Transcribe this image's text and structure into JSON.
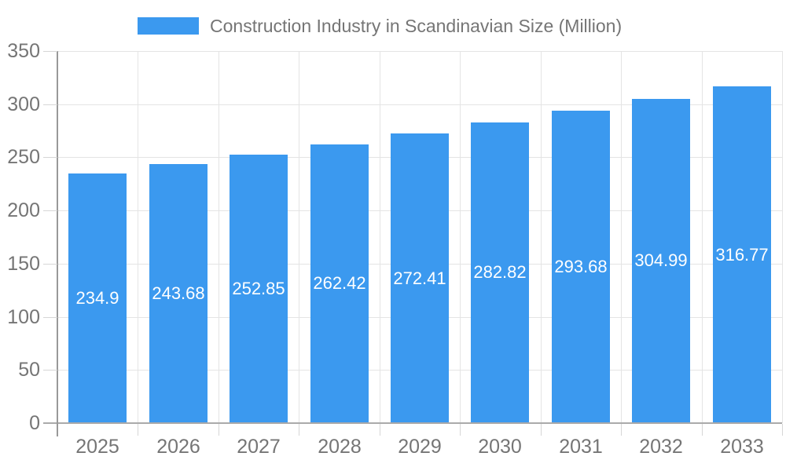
{
  "chart_data": {
    "type": "bar",
    "title": "Construction Industry in Scandinavian Size (Million)",
    "categories": [
      "2025",
      "2026",
      "2027",
      "2028",
      "2029",
      "2030",
      "2031",
      "2032",
      "2033"
    ],
    "values": [
      234.9,
      243.68,
      252.85,
      262.42,
      272.41,
      282.82,
      293.68,
      304.99,
      316.77
    ],
    "value_labels": [
      "234.9",
      "243.68",
      "252.85",
      "262.42",
      "272.41",
      "282.82",
      "293.68",
      "304.99",
      "316.77"
    ],
    "ylim": [
      0,
      350
    ],
    "ytick_step": 50,
    "ytick_labels": [
      "0",
      "50",
      "100",
      "150",
      "200",
      "250",
      "300",
      "350"
    ],
    "xlabel": "",
    "ylabel": "",
    "grid": "on",
    "legend_position": "top",
    "value_label_position": "inside-center",
    "colors": {
      "bar": "#3B99EF",
      "grid": "#E4E4E4",
      "axis": "#999999",
      "baseline": "#AAAAAA",
      "tick": "#D6D6D6",
      "axis_text": "#757575",
      "legend_text": "#757575",
      "value_text": "#FFFFFF",
      "background": "#FFFFFF"
    }
  }
}
